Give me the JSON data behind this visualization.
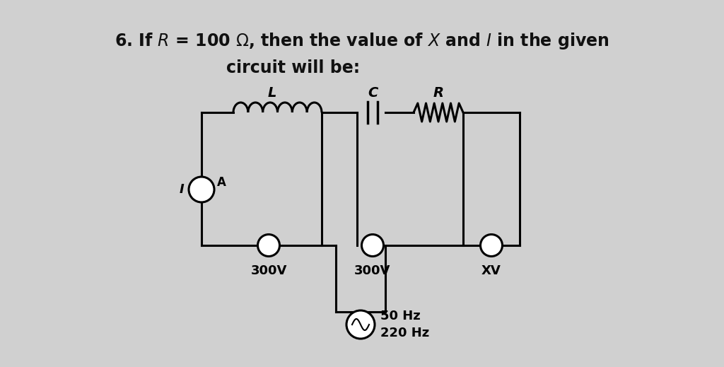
{
  "background_color": "#d0d0d0",
  "title_text": "6⁠⁠. If $R$ = 100 Ω, then the value of $X$ and $I$ in the given\ncircuit will be:",
  "title_fontsize": 18,
  "title_color": "#000000",
  "circuit": {
    "L_label": "L",
    "C_label": "C",
    "R_label": "R",
    "voltmeter1_label": "300V",
    "voltmeter2_label": "300V",
    "voltmeter3_label": "XV",
    "ammeter_label": "A",
    "current_label": "I",
    "source_label1": "50 Hz",
    "source_label2": "220 Hz"
  }
}
